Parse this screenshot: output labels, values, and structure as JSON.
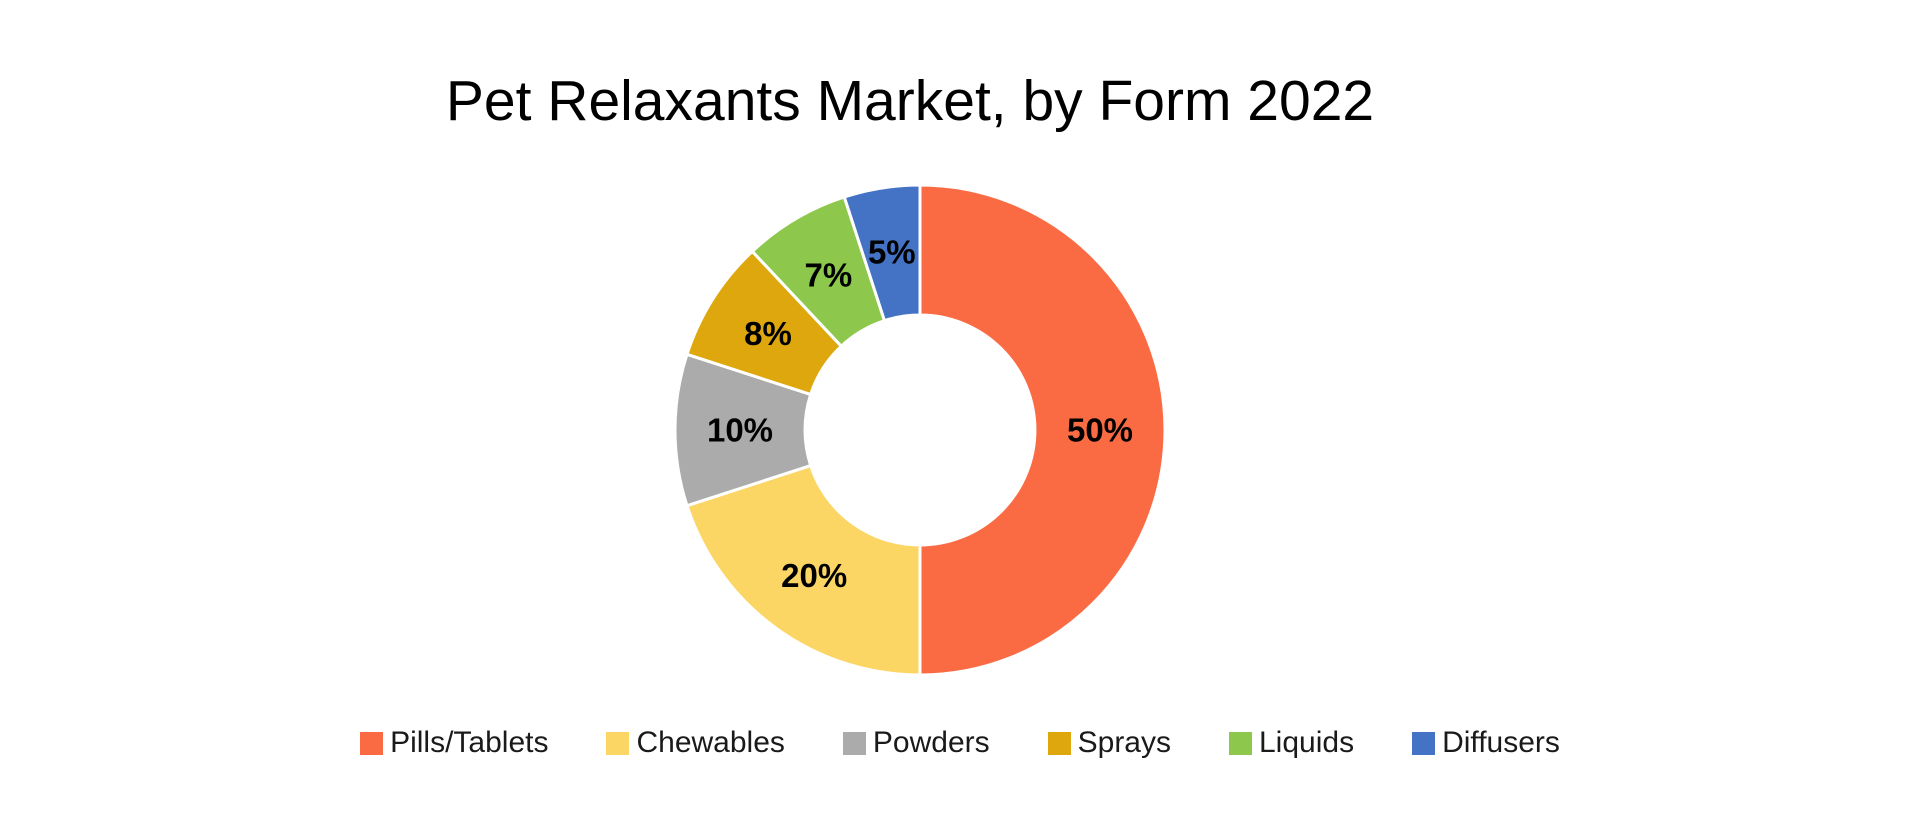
{
  "title": "Pet Relaxants Market, by Form 2022",
  "chart_data": {
    "type": "pie",
    "subtype": "donut",
    "title": "Pet Relaxants Market, by Form 2022",
    "categories": [
      "Pills/Tablets",
      "Chewables",
      "Powders",
      "Sprays",
      "Liquids",
      "Diffusers"
    ],
    "values": [
      50,
      20,
      10,
      8,
      7,
      5
    ],
    "data_labels": [
      "50%",
      "20%",
      "10%",
      "8%",
      "7%",
      "5%"
    ],
    "colors": [
      "#FA6B44",
      "#FBD665",
      "#ABABAB",
      "#DDA70D",
      "#8DC74B",
      "#4472C4"
    ],
    "start_angle_deg": 0,
    "direction": "clockwise",
    "hole_ratio": 0.47,
    "slice_border_color": "#FFFFFF",
    "data_label_color": "#000000",
    "legend_position": "bottom",
    "background": "#FFFFFF"
  }
}
